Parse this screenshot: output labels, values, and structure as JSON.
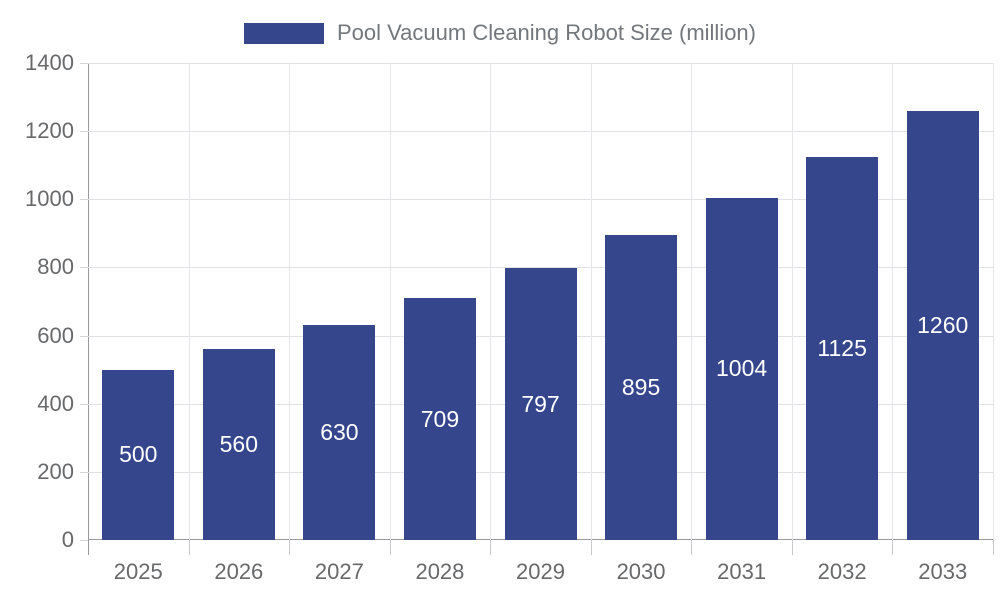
{
  "chart_data": {
    "type": "bar",
    "title": "",
    "legend_position": "top",
    "legend_label": "Pool Vacuum Cleaning Robot Size (million)",
    "categories": [
      "2025",
      "2026",
      "2027",
      "2028",
      "2029",
      "2030",
      "2031",
      "2032",
      "2033"
    ],
    "series": [
      {
        "name": "Pool Vacuum Cleaning Robot Size (million)",
        "values": [
          500,
          560,
          630,
          709,
          797,
          895,
          1004,
          1125,
          1260
        ]
      }
    ],
    "value_labels_shown": true,
    "xlabel": "",
    "ylabel": "",
    "ylim": [
      0,
      1400
    ],
    "yticks": [
      0,
      200,
      400,
      600,
      800,
      1000,
      1200,
      1400
    ],
    "grid": true,
    "colors": {
      "bar_fill": "#35468c",
      "bar_value_text": "#ffffff",
      "gridline": "#e2e2e6",
      "axis_line": "#9a9a9e",
      "tick_label": "#68696b",
      "legend_text": "#73777b",
      "background": "#ffffff"
    }
  }
}
